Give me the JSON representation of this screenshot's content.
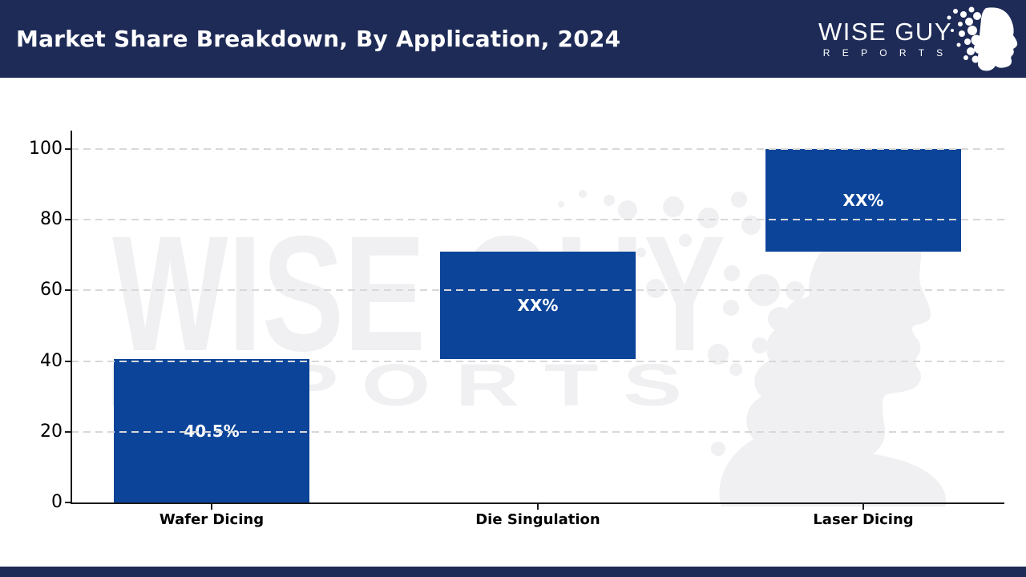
{
  "header": {
    "title": "Market Share Breakdown, By Application, 2024",
    "logo": {
      "wordmark": "WISE GUY",
      "subword": "R E P O R T S"
    }
  },
  "watermark": {
    "wordmark": "WISE GUY",
    "subword": "R E P O R T S"
  },
  "chart_data": {
    "type": "bar",
    "variant": "waterfall",
    "title": "Market Share Breakdown, By Application, 2024",
    "categories": [
      "Wafer Dicing",
      "Die Singulation",
      "Laser Dicing"
    ],
    "segments": [
      {
        "category": "Wafer Dicing",
        "start": 0,
        "end": 40.5,
        "label": "40.5%"
      },
      {
        "category": "Die Singulation",
        "start": 40.5,
        "end": 71,
        "label": "XX%"
      },
      {
        "category": "Laser Dicing",
        "start": 71,
        "end": 100,
        "label": "XX%"
      }
    ],
    "values": [
      40.5,
      30.5,
      29
    ],
    "yticks": [
      0,
      20,
      40,
      60,
      80,
      100
    ],
    "ylim": [
      0,
      105
    ],
    "xlabel": "",
    "ylabel": "",
    "legend": "none",
    "grid": "horizontal-dashed",
    "bar_color": "#0b4499",
    "bar_label_color": "#ffffff"
  },
  "colors": {
    "header_bg": "#1e2b57",
    "footer_bg": "#1e2b57",
    "watermark": "#f0f0f2",
    "grid": "#d8d8d8",
    "axis": "#1a1a1a"
  }
}
